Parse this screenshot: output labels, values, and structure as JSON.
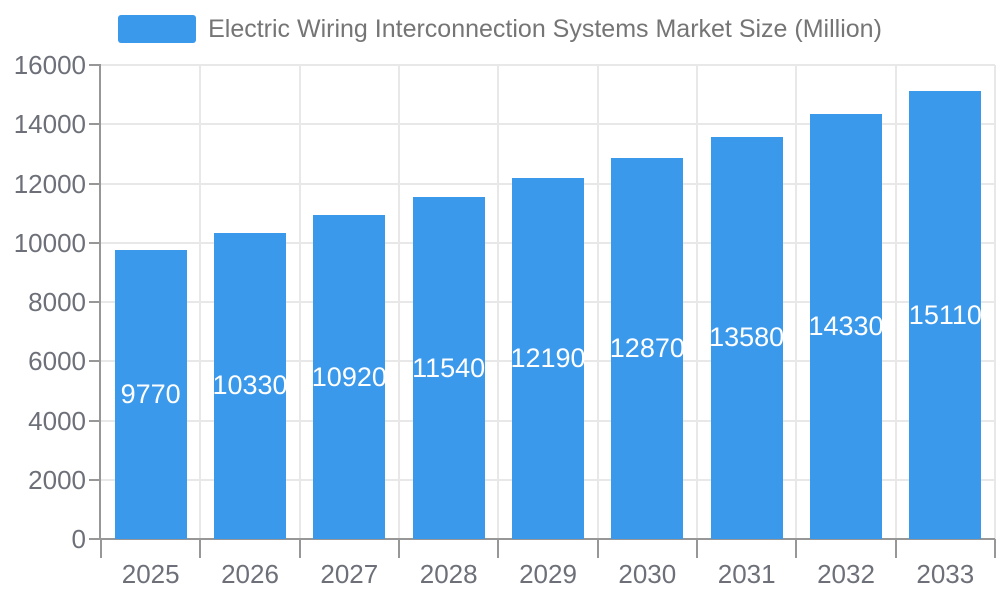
{
  "legend": {
    "label": "Electric Wiring Interconnection Systems Market Size (Million)"
  },
  "chart_data": {
    "type": "bar",
    "title": "Electric Wiring Interconnection Systems Market Size (Million)",
    "categories": [
      "2025",
      "2026",
      "2027",
      "2028",
      "2029",
      "2030",
      "2031",
      "2032",
      "2033"
    ],
    "values": [
      9770,
      10330,
      10920,
      11540,
      12190,
      12870,
      13580,
      14330,
      15110
    ],
    "series_name": "Electric Wiring Interconnection Systems Market Size (Million)",
    "xlabel": "",
    "ylabel": "",
    "ylim": [
      0,
      16000
    ],
    "ytick_step": 2000,
    "yticks": [
      0,
      2000,
      4000,
      6000,
      8000,
      10000,
      12000,
      14000,
      16000
    ],
    "grid": true,
    "legend_position": "top-center",
    "bar_label_position": "inside-center",
    "colors": {
      "bar": "#3b99ec",
      "bar_label": "#ffffff",
      "grid_line": "#e8e8e8",
      "axis_line": "#979797",
      "axis_label": "#6e7079",
      "legend_text": "#757575",
      "background": "#ffffff"
    }
  }
}
